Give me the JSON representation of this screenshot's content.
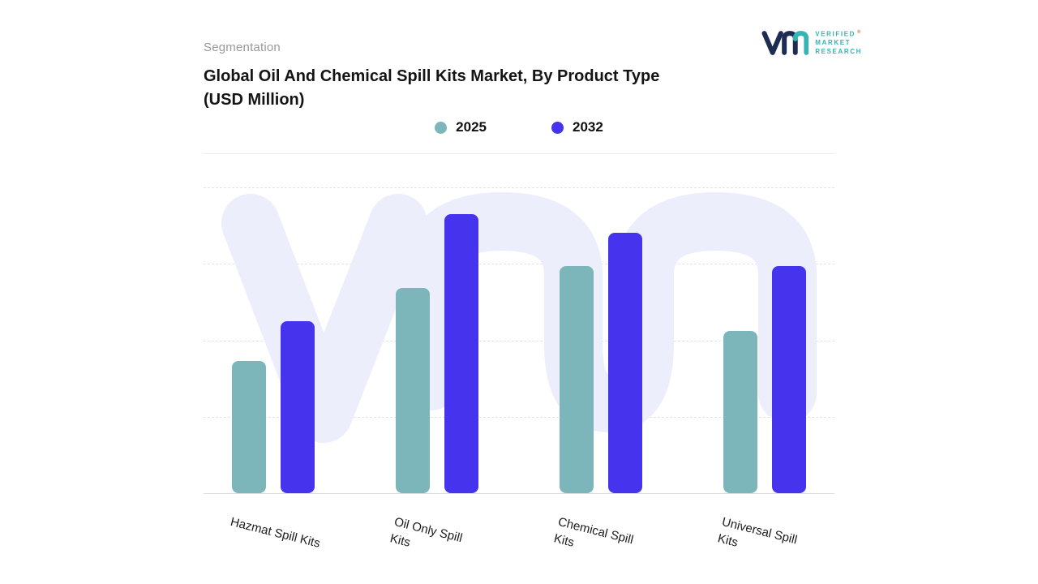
{
  "header": {
    "eyebrow": "Segmentation",
    "title_line1": "Global Oil And Chemical Spill Kits Market, By Product Type",
    "title_line2": "(USD Million)",
    "logo": {
      "lines": [
        "VERIFIED",
        "MARKET",
        "RESEARCH"
      ],
      "registered": "®"
    }
  },
  "chart_data": {
    "type": "bar",
    "title": "Global Oil And Chemical Spill Kits Market, By Product Type (USD Million)",
    "value_unit": "USD Million",
    "categories": [
      "Hazmat Spill Kits",
      "Oil Only Spill Kits",
      "Chemical Spill Kits",
      "Universal Spill Kits"
    ],
    "category_label_lines": [
      [
        "Hazmat Spill Kits"
      ],
      [
        "Oil Only Spill",
        "Kits"
      ],
      [
        "Chemical Spill",
        "Kits"
      ],
      [
        "Universal Spill",
        "Kits"
      ]
    ],
    "series": [
      {
        "name": "2025",
        "color": "#7db6ba",
        "values": [
          43,
          67,
          74,
          53
        ]
      },
      {
        "name": "2032",
        "color": "#4533ee",
        "values": [
          56,
          91,
          85,
          74
        ]
      }
    ],
    "xlabel": "",
    "ylabel": "",
    "ylim": [
      0,
      100
    ],
    "grid": "horizontal-dashed",
    "legend_position": "top-center"
  },
  "colors": {
    "series_2025": "#7db6ba",
    "series_2032": "#4533ee",
    "watermark": "#edeefb",
    "logo_navy": "#1e2c52",
    "logo_teal": "#35b5b3",
    "registered_orange": "#e8683a"
  }
}
